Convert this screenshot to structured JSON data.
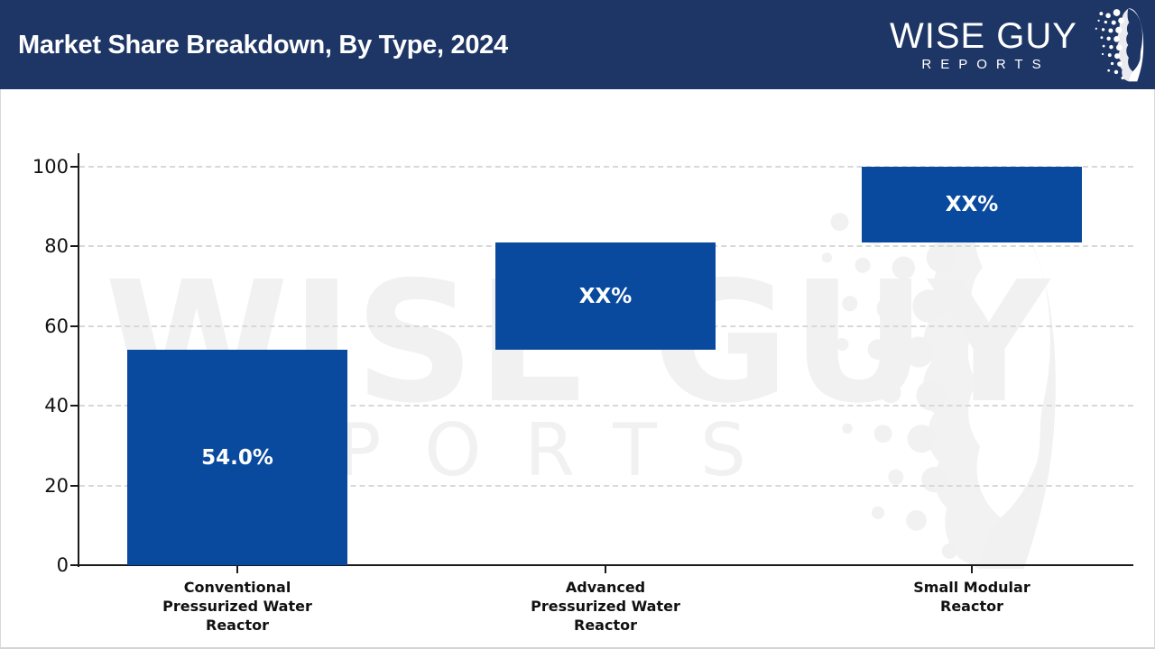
{
  "header": {
    "title": "Market Share Breakdown, By Type, 2024",
    "logo": {
      "line1": "WISE GUY",
      "line2": "REPORTS"
    }
  },
  "watermark": {
    "line1": "WISE GUY",
    "line2": "REPORTS"
  },
  "chart_data": {
    "type": "bar",
    "subtype": "floating-segment (waterfall style) market share chart",
    "title": "Market Share Breakdown, By Type, 2024",
    "categories": [
      {
        "name": "Conventional Pressurized Water Reactor",
        "lines": [
          "Conventional",
          "Pressurized Water",
          "Reactor"
        ]
      },
      {
        "name": "Advanced Pressurized Water Reactor",
        "lines": [
          "Advanced",
          "Pressurized Water",
          "Reactor"
        ]
      },
      {
        "name": "Small Modular Reactor",
        "lines": [
          "Small Modular",
          "Reactor"
        ]
      }
    ],
    "segments": [
      {
        "category": "Conventional Pressurized Water Reactor",
        "start": 0,
        "end": 54,
        "value": 54,
        "label": "54.0%"
      },
      {
        "category": "Advanced Pressurized Water Reactor",
        "start": 54,
        "end": 81,
        "value": 27,
        "label": "XX%"
      },
      {
        "category": "Small Modular Reactor",
        "start": 81,
        "end": 100,
        "value": 19,
        "label": "XX%"
      }
    ],
    "xlabel": "",
    "ylabel": "",
    "ylim": [
      0,
      103
    ],
    "yticks": [
      0,
      20,
      40,
      60,
      80,
      100
    ],
    "grid": "horizontal-dashed",
    "legend": "none"
  },
  "colors": {
    "header_bg": "#1e3666",
    "bar": "#0a4a9e",
    "grid": "#d8d8d8",
    "axis": "#1a1a1a",
    "watermark": "#f1f1f1",
    "bar_label": "#ffffff"
  }
}
